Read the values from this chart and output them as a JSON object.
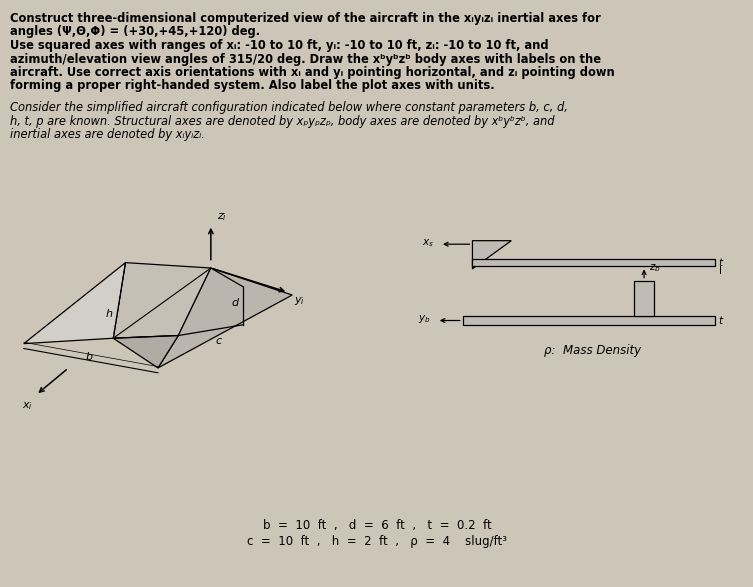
{
  "bg_color": "#cdc5b8",
  "text_color": "#000000",
  "fig_width": 7.53,
  "fig_height": 5.87,
  "dpi": 100,
  "para1_lines": [
    "Construct three-dimensional computerized view of the aircraft in the xᵢyᵢzᵢ inertial axes for",
    "angles (Ψ,Θ,Φ) = (+30,+45,+120) deg."
  ],
  "para2_lines": [
    "Use squared axes with ranges of xᵢ: -10 to 10 ft, yᵢ: -10 to 10 ft, zᵢ: -10 to 10 ft, and",
    "azimuth/elevation view angles of 315/20 deg. Draw the xᵇyᵇzᵇ body axes with labels on the",
    "aircraft. Use correct axis orientations with xᵢ and yᵢ pointing horizontal, and zᵢ pointing down",
    "forming a proper right-handed system. Also label the plot axes with units."
  ],
  "para3_lines": [
    "Consider the simplified aircraft configuration indicated below where constant parameters b, c, d,",
    "h, t, p are known. Structural axes are denoted by xₚyₚzₚ, body axes are denoted by xᵇyᵇzᵇ, and",
    "inertial axes are denoted by xᵢyᵢzᵢ."
  ],
  "param_line1": "b  =  10  ft  ,   d  =  6  ft  ,   t  =  0.2  ft",
  "param_line2": "c  =  10  ft  ,   h  =  2  ft  ,   ρ  =  4    slug/ft³"
}
